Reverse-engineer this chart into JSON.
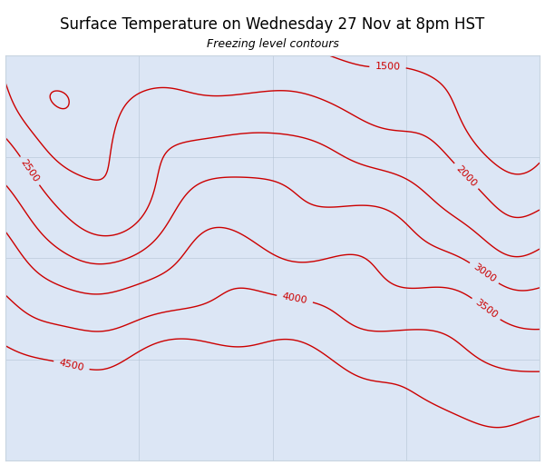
{
  "title": "Surface Temperature on Wednesday 27 Nov at 8pm HST",
  "subtitle": "Freezing level contours",
  "background_color": "#dce6f5",
  "map_border_color": "#c8d4e0",
  "contour_color": "#cc0000",
  "contour_levels": [
    1500,
    2000,
    2500,
    3000,
    3500,
    4000,
    4500
  ],
  "label_fontsize": 8,
  "title_fontsize": 12,
  "subtitle_fontsize": 9,
  "grid_color": "#b0c0d0",
  "grid_alpha": 0.6,
  "figsize": [
    6.01,
    5.12
  ],
  "dpi": 100
}
